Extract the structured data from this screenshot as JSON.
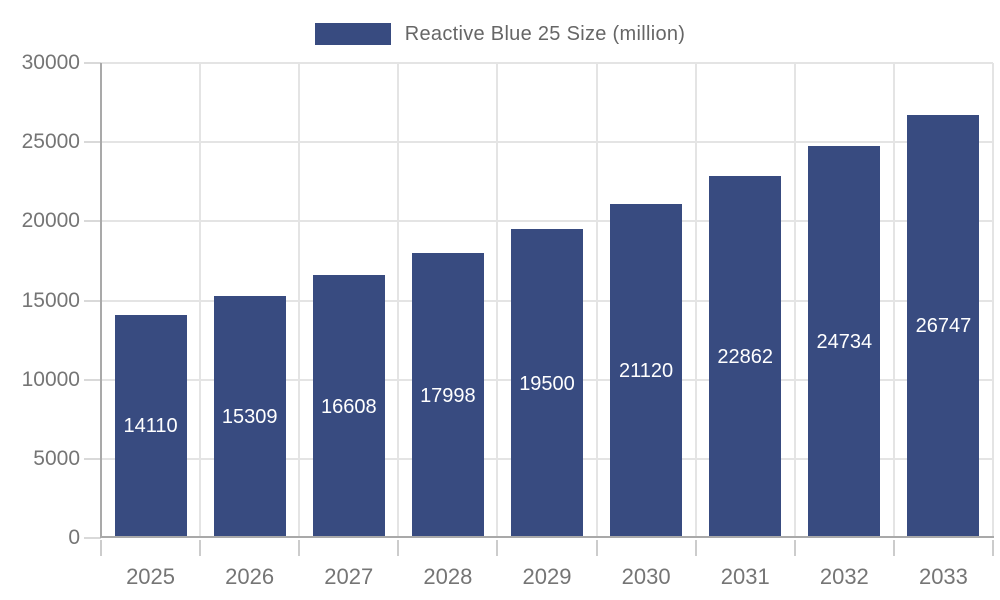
{
  "legend": {
    "label": "Reactive Blue 25 Size (million)"
  },
  "colors": {
    "bar": "#384B80",
    "bar_label": "#ffffff",
    "axis_line": "#a9a9a9",
    "grid_line": "#e4e4e4",
    "tick_mark": "#cccccc",
    "tick_label": "#757575",
    "legend_text": "#666666",
    "background": "#ffffff"
  },
  "chart_data": {
    "type": "bar",
    "title": "",
    "xlabel": "",
    "ylabel": "",
    "categories": [
      "2025",
      "2026",
      "2027",
      "2028",
      "2029",
      "2030",
      "2031",
      "2032",
      "2033"
    ],
    "series": [
      {
        "name": "Reactive Blue 25 Size (million)",
        "values": [
          14110,
          15309,
          16608,
          17998,
          19500,
          21120,
          22862,
          24734,
          26747
        ]
      }
    ],
    "bar_value_labels": [
      "14110",
      "15309",
      "16608",
      "17998",
      "19500",
      "21120",
      "22862",
      "24734",
      "26747"
    ],
    "ylim": [
      0,
      30000
    ],
    "ytick_interval": 5000,
    "ytick_labels": [
      "0",
      "5000",
      "10000",
      "15000",
      "20000",
      "25000",
      "30000"
    ],
    "grid": true,
    "legend_position": "top-center",
    "value_label_position": "inside-center"
  }
}
